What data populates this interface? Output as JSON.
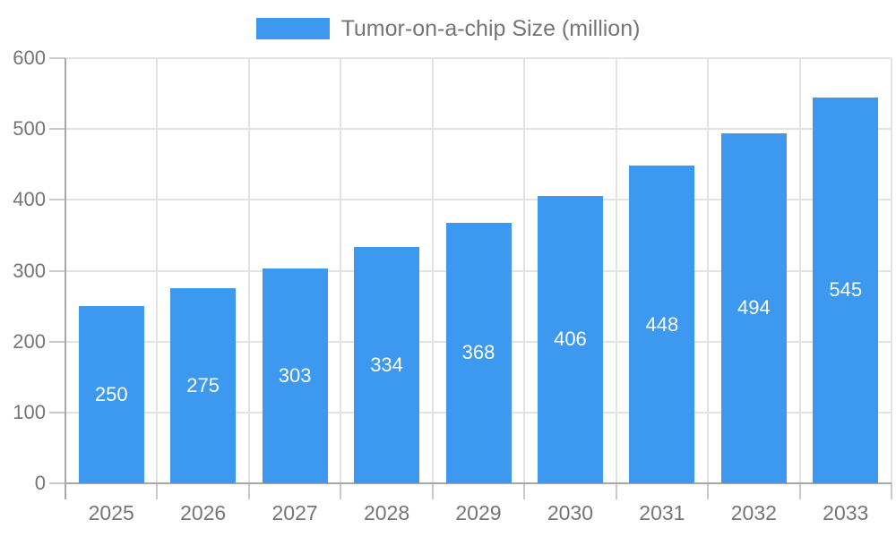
{
  "legend": {
    "label": "Tumor-on-a-chip Size (million)",
    "position": "top"
  },
  "colors": {
    "bar": "#3D99F0",
    "axis_text": "#757575",
    "legend_text": "#757575",
    "value_text": "#FFFFFF",
    "grid_line": "#E3E3E3",
    "axis_line": "#A8A8A8",
    "tick_line": "#C9C9C9",
    "background": "#FFFFFF"
  },
  "chart_data": {
    "type": "bar",
    "title": "",
    "legend_label": "Tumor-on-a-chip Size (million)",
    "legend_position": "top",
    "categories": [
      "2025",
      "2026",
      "2027",
      "2028",
      "2029",
      "2030",
      "2031",
      "2032",
      "2033"
    ],
    "values": [
      250,
      275,
      303,
      334,
      368,
      406,
      448,
      494,
      545
    ],
    "ylim": [
      0,
      600
    ],
    "yticks": [
      0,
      100,
      200,
      300,
      400,
      500,
      600
    ],
    "grid": true,
    "value_labels": "inside-center"
  }
}
